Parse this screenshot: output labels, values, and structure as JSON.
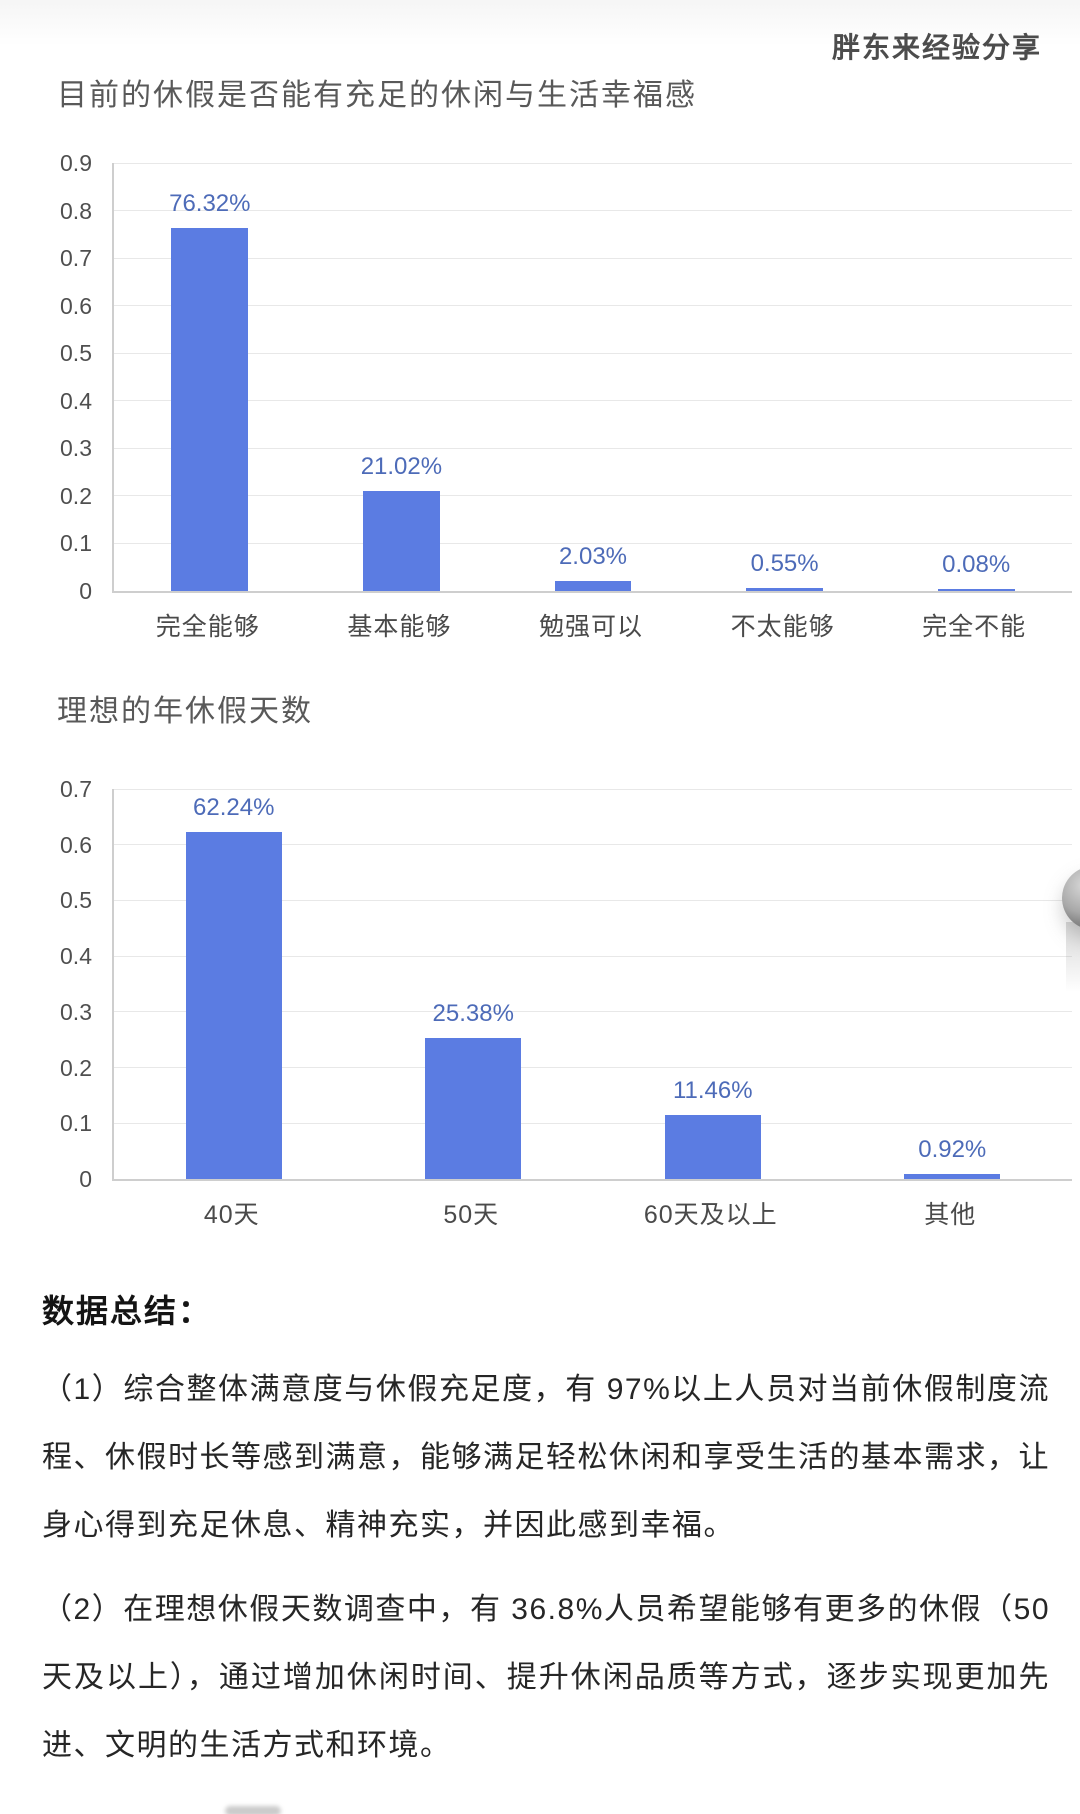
{
  "watermark": "胖东来经验分享",
  "colors": {
    "bar": "#5b7ce2",
    "data_label": "#4d6bb8",
    "axis_text": "#4f4f4f",
    "title_text": "#595959",
    "body_text": "#262626"
  },
  "chart_data": [
    {
      "type": "bar",
      "title": "目前的休假是否能有充足的休闲与生活幸福感",
      "categories": [
        "完全能够",
        "基本能够",
        "勉强可以",
        "不太能够",
        "完全不能"
      ],
      "values_percent": [
        76.32,
        21.02,
        2.03,
        0.55,
        0.08
      ],
      "data_labels": [
        "76.32%",
        "21.02%",
        "2.03%",
        "0.55%",
        "0.08%"
      ],
      "y_ticks": [
        "0.9",
        "0.8",
        "0.7",
        "0.6",
        "0.5",
        "0.4",
        "0.3",
        "0.2",
        "0.1",
        "0"
      ],
      "ylim": [
        0,
        0.9
      ],
      "grid": true,
      "legend": "none",
      "xlabel": "",
      "ylabel": ""
    },
    {
      "type": "bar",
      "title": "理想的年休假天数",
      "categories": [
        "40天",
        "50天",
        "60天及以上",
        "其他"
      ],
      "values_percent": [
        62.24,
        25.38,
        11.46,
        0.92
      ],
      "data_labels": [
        "62.24%",
        "25.38%",
        "11.46%",
        "0.92%"
      ],
      "y_ticks": [
        "0.7",
        "0.6",
        "0.5",
        "0.4",
        "0.3",
        "0.2",
        "0.1",
        "0"
      ],
      "ylim": [
        0,
        0.7
      ],
      "grid": true,
      "legend": "none",
      "xlabel": "",
      "ylabel": ""
    }
  ],
  "summary": {
    "heading": "数据总结：",
    "paragraphs": [
      "（1）综合整体满意度与休假充足度，有 97%以上人员对当前休假制度流程、休假时长等感到满意，能够满足轻松休闲和享受生活的基本需求，让身心得到充足休息、精神充实，并因此感到幸福。",
      "（2）在理想休假天数调查中，有 36.8%人员希望能够有更多的休假（50 天及以上），通过增加休闲时间、提升休闲品质等方式，逐步实现更加先进、文明的生活方式和环境。"
    ]
  }
}
